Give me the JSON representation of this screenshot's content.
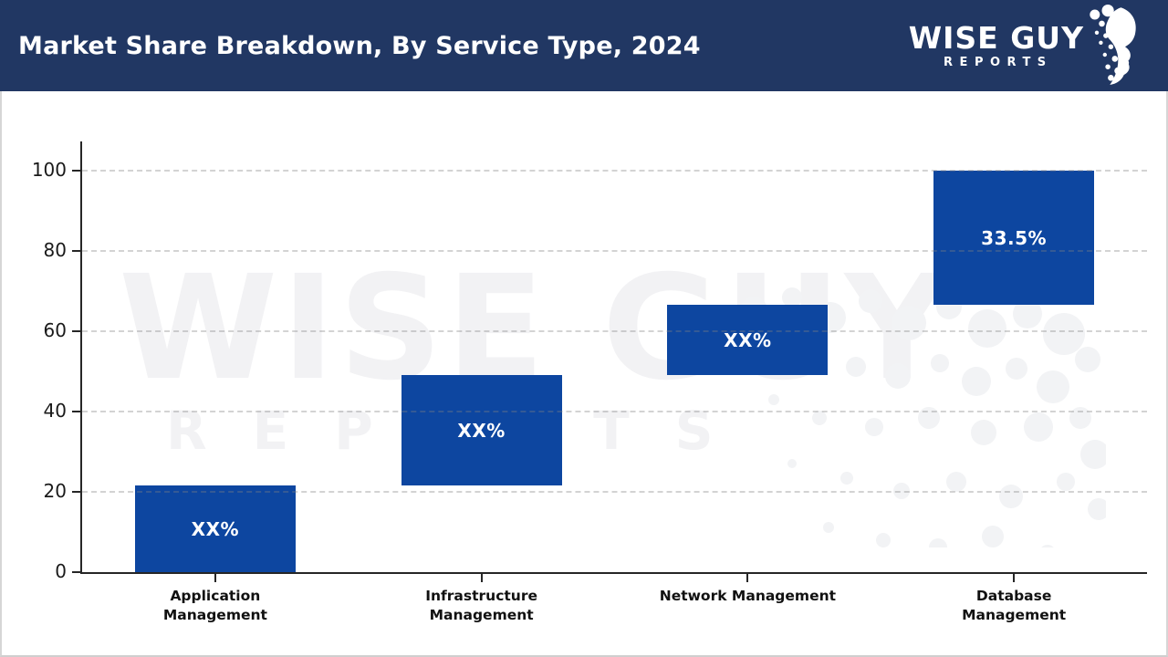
{
  "header": {
    "title": "Market Share Breakdown, By Service Type, 2024",
    "logo": {
      "wordmark": "WISE GUY",
      "subtext": "REPORTS"
    }
  },
  "watermark": {
    "wordmark": "WISE GUY",
    "subtext": "REPORTS"
  },
  "colors": {
    "header_bg": "#213763",
    "bar": "#0d46a0",
    "bar_label": "#ffffff",
    "axis": "#262626",
    "grid": "#d9d9d9",
    "watermark": "#f2f2f4"
  },
  "chart_data": {
    "type": "bar",
    "variant": "floating-waterfall",
    "title": "Market Share Breakdown, By Service Type, 2024",
    "categories": [
      "Application Management",
      "Infrastructure Management",
      "Network Management",
      "Database Management"
    ],
    "bars": [
      {
        "category_lines": [
          "Application",
          "Management"
        ],
        "start": 0,
        "end": 21.5,
        "label": "XX%"
      },
      {
        "category_lines": [
          "Infrastructure",
          "Management"
        ],
        "start": 21.5,
        "end": 49.0,
        "label": "XX%"
      },
      {
        "category_lines": [
          "Network Management"
        ],
        "start": 49.0,
        "end": 66.5,
        "label": "XX%"
      },
      {
        "category_lines": [
          "Database",
          "Management"
        ],
        "start": 66.5,
        "end": 100.0,
        "label": "33.5%"
      }
    ],
    "xlabel": "",
    "ylabel": "",
    "ylim": [
      0,
      100
    ],
    "yticks": [
      0,
      20,
      40,
      60,
      80,
      100
    ],
    "grid": "horizontal-dashed-above-bars",
    "legend": "none"
  }
}
